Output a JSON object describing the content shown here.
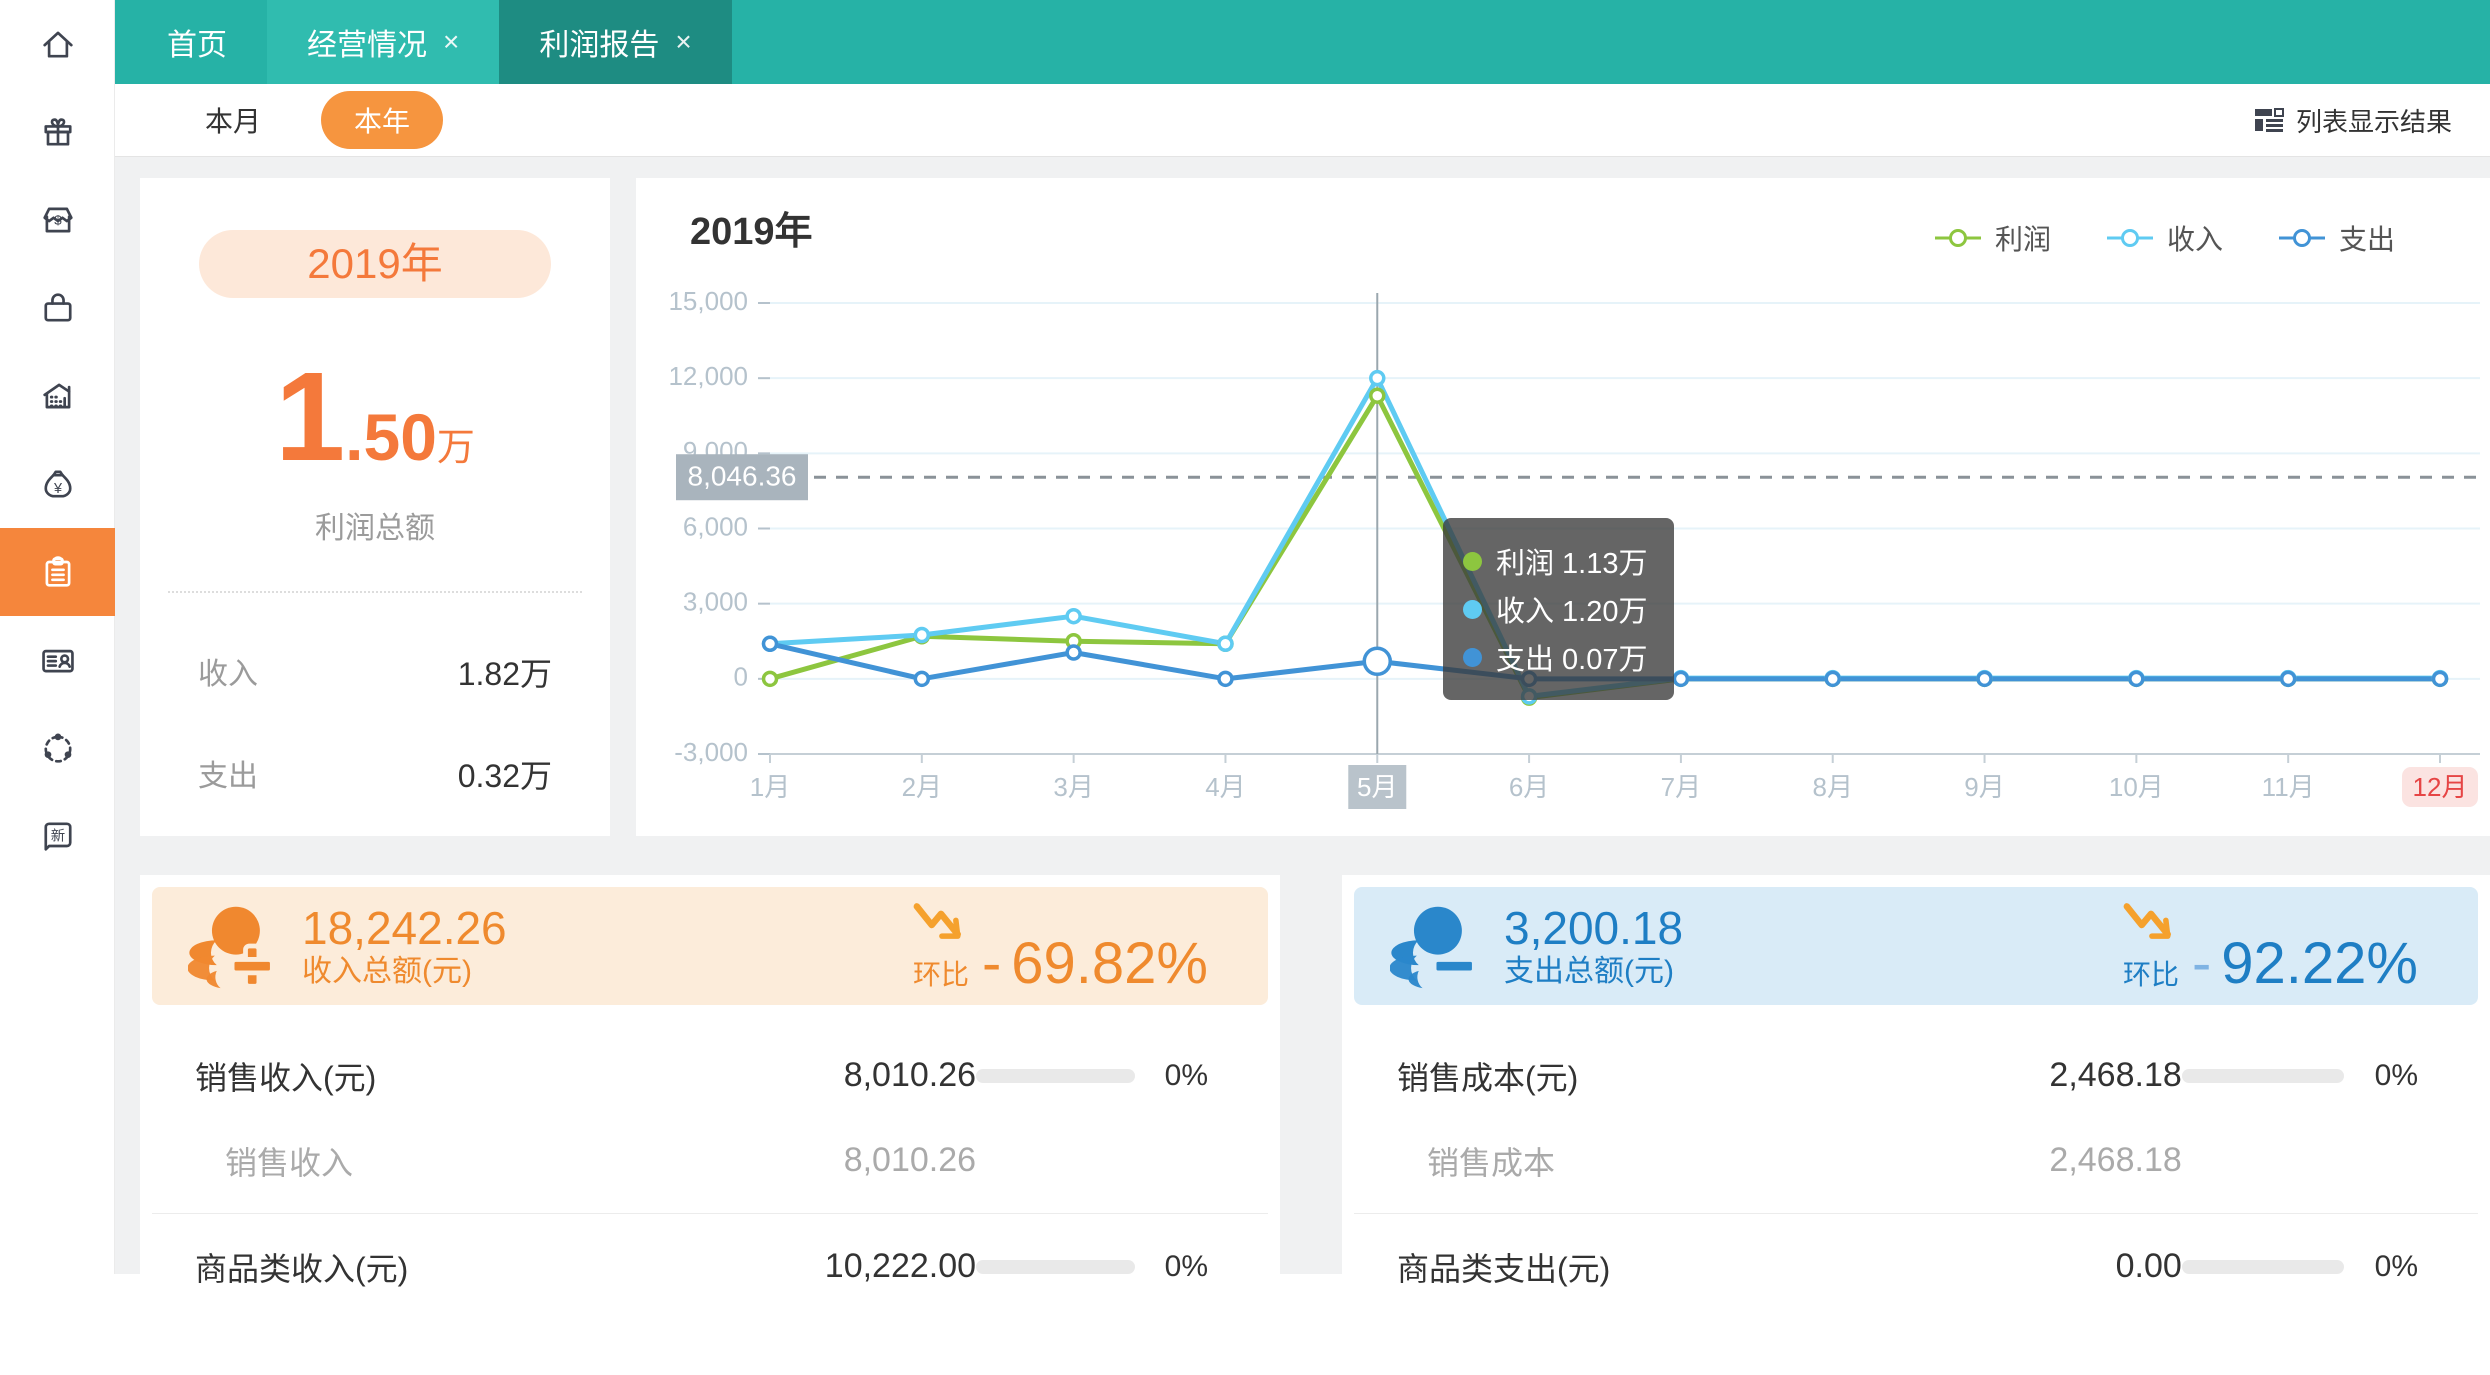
{
  "tabs": [
    {
      "label": "首页",
      "closable": false,
      "state": "plain"
    },
    {
      "label": "经营情况",
      "closable": true,
      "close_glyph": "×",
      "state": "shaded"
    },
    {
      "label": "利润报告",
      "closable": true,
      "close_glyph": "×",
      "state": "active"
    }
  ],
  "sidebar": {
    "items": [
      {
        "icon": "home-icon",
        "active": false
      },
      {
        "icon": "gift-icon",
        "active": false
      },
      {
        "icon": "store-dollar-icon",
        "active": false
      },
      {
        "icon": "bag-icon",
        "active": false
      },
      {
        "icon": "warehouse-icon",
        "active": false
      },
      {
        "icon": "moneybag-icon",
        "active": false
      },
      {
        "icon": "clipboard-report-icon",
        "active": true
      },
      {
        "icon": "contact-card-icon",
        "active": false
      },
      {
        "icon": "share-network-icon",
        "active": false
      },
      {
        "icon": "new-badge-icon",
        "active": false
      }
    ]
  },
  "subheader": {
    "month_label": "本月",
    "year_label": "本年",
    "list_toggle_label": "列表显示结果"
  },
  "summary_card": {
    "year_pill": "2019年",
    "big_int": "1",
    "big_dec": ".50",
    "big_unit": "万",
    "caption": "利润总额",
    "rows": [
      {
        "label": "收入",
        "value": "1.82万"
      },
      {
        "label": "支出",
        "value": "0.32万"
      }
    ]
  },
  "chart_data": {
    "type": "line",
    "title": "2019年",
    "categories": [
      "1月",
      "2月",
      "3月",
      "4月",
      "5月",
      "6月",
      "7月",
      "8月",
      "9月",
      "10月",
      "11月",
      "12月"
    ],
    "series": [
      {
        "name": "利润",
        "color": "#8dc63f",
        "values": [
          0,
          1700,
          1500,
          1400,
          11300,
          -750,
          0,
          0,
          0,
          0,
          0,
          0
        ]
      },
      {
        "name": "收入",
        "color": "#5fcbf2",
        "values": [
          1400,
          1750,
          2500,
          1400,
          12000,
          -700,
          30,
          30,
          30,
          30,
          30,
          30
        ]
      },
      {
        "name": "支出",
        "color": "#4193d6",
        "values": [
          1400,
          0,
          1050,
          0,
          700,
          0,
          0,
          0,
          0,
          0,
          0,
          0
        ]
      }
    ],
    "ylim": [
      -3000,
      15000
    ],
    "yticks": [
      {
        "value": 15000,
        "label": "15,000"
      },
      {
        "value": 12000,
        "label": "12,000"
      },
      {
        "value": 9000,
        "label": "9,000"
      },
      {
        "value": 6000,
        "label": "6,000"
      },
      {
        "value": 3000,
        "label": "3,000"
      },
      {
        "value": 0,
        "label": "0"
      },
      {
        "value": -3000,
        "label": "-3,000"
      }
    ],
    "marker_line": {
      "value": 8046.36,
      "label": "8,046.36"
    },
    "highlight_index": 4,
    "highlight_label": "5月",
    "last_tick_highlight": "12月",
    "emphasis_point": {
      "series": 2,
      "index": 4
    },
    "grid": true,
    "legend_position": "top-right",
    "tooltip": {
      "rows": [
        {
          "label": "利润",
          "value": "1.13万"
        },
        {
          "label": "收入",
          "value": "1.20万"
        },
        {
          "label": "支出",
          "value": "0.07万"
        }
      ]
    }
  },
  "income_card": {
    "total": "18,242.26",
    "total_label": "收入总额(元)",
    "ratio_label": "环比",
    "ratio_minus": "-",
    "ratio_value": "69.82%",
    "rows": [
      {
        "label": "销售收入(元)",
        "value": "8,010.26",
        "pct": "0%",
        "muted": false,
        "bar": true,
        "divider_after": false
      },
      {
        "label": "销售收入",
        "value": "8,010.26",
        "pct": "",
        "muted": true,
        "bar": false,
        "divider_after": true
      },
      {
        "label": "商品类收入(元)",
        "value": "10,222.00",
        "pct": "0%",
        "muted": false,
        "bar": true,
        "divider_after": false
      }
    ]
  },
  "expense_card": {
    "total": "3,200.18",
    "total_label": "支出总额(元)",
    "ratio_label": "环比",
    "ratio_minus": "-",
    "ratio_value": "92.22%",
    "rows": [
      {
        "label": "销售成本(元)",
        "value": "2,468.18",
        "pct": "0%",
        "muted": false,
        "bar": true,
        "divider_after": false
      },
      {
        "label": "销售成本",
        "value": "2,468.18",
        "pct": "",
        "muted": true,
        "bar": false,
        "divider_after": true
      },
      {
        "label": "商品类支出(元)",
        "value": "0.00",
        "pct": "0%",
        "muted": false,
        "bar": true,
        "divider_after": false
      }
    ]
  },
  "colors": {
    "topbar": "#26b2a6",
    "tab_active": "#1e8c82",
    "accent_orange": "#f5863c",
    "accent_blue": "#1e7ec4",
    "axis_text": "#b5c2cc",
    "grid_line": "#e6f3f9",
    "dashed_line": "#8a9298",
    "tick_red": "#e64545"
  }
}
